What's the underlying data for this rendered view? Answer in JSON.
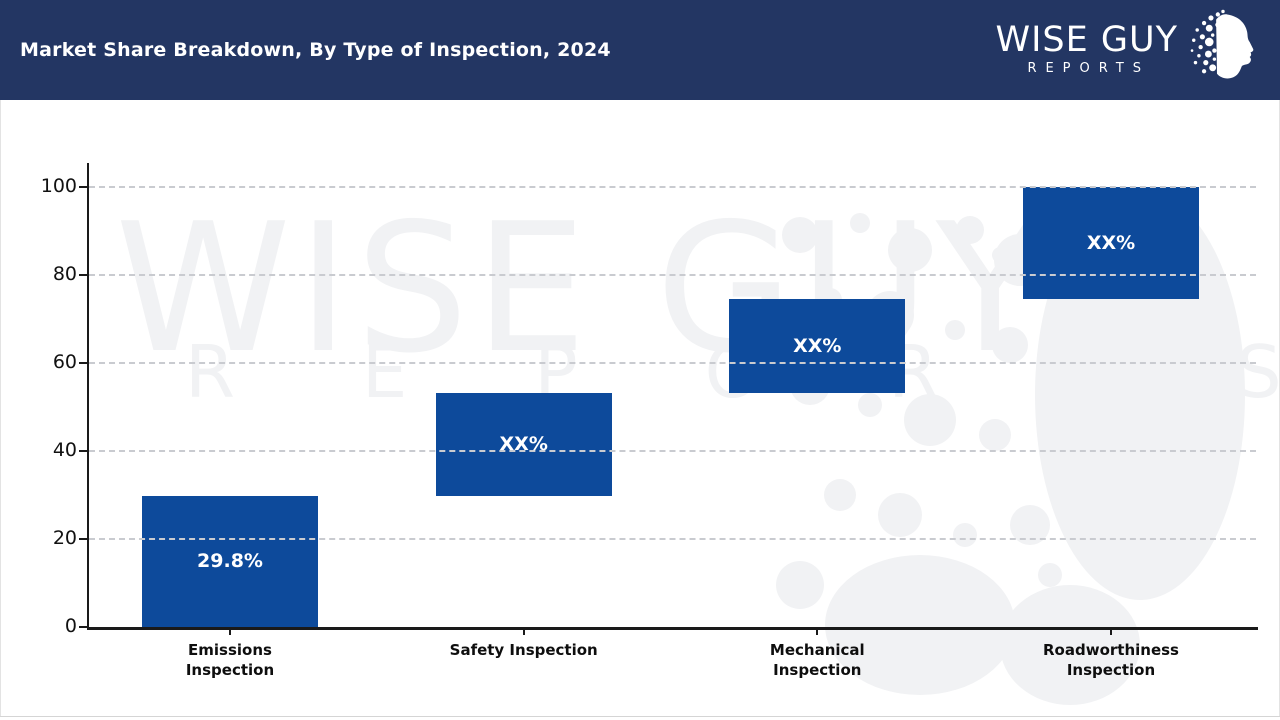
{
  "header": {
    "title": "Market Share Breakdown, By Type of Inspection, 2024",
    "logo": {
      "line1": "WISE GUY",
      "line2": "REPORTS"
    }
  },
  "watermark": {
    "line1": "WISE GUY",
    "line2": "R E P O R T S"
  },
  "colors": {
    "header_bg": "#233663",
    "bar": "#0d4a9b",
    "grid": "#c9cbd0",
    "axis": "#1a1a1a",
    "watermark": "#f1f2f4",
    "label_on_bar": "#ffffff"
  },
  "chart_data": {
    "type": "bar",
    "subtype": "waterfall",
    "title": "Market Share Breakdown, By Type of Inspection, 2024",
    "xlabel": "",
    "ylabel": "",
    "categories": [
      [
        "Emissions",
        "Inspection"
      ],
      [
        "Safety Inspection"
      ],
      [
        "Mechanical",
        "Inspection"
      ],
      [
        "Roadworthiness",
        "Inspection"
      ]
    ],
    "segments": [
      {
        "category": "Emissions Inspection",
        "start": 0,
        "end": 29.8,
        "label": "29.8%"
      },
      {
        "category": "Safety Inspection",
        "start": 29.8,
        "end": 53.2,
        "label": "XX%"
      },
      {
        "category": "Mechanical Inspection",
        "start": 53.2,
        "end": 74.6,
        "label": "XX%"
      },
      {
        "category": "Roadworthiness Inspection",
        "start": 74.6,
        "end": 100,
        "label": "XX%"
      }
    ],
    "yticks": [
      0,
      20,
      40,
      60,
      80,
      100
    ],
    "ylim": [
      0,
      105.5
    ],
    "grid": "horizontal-dashed",
    "legend": "none"
  }
}
